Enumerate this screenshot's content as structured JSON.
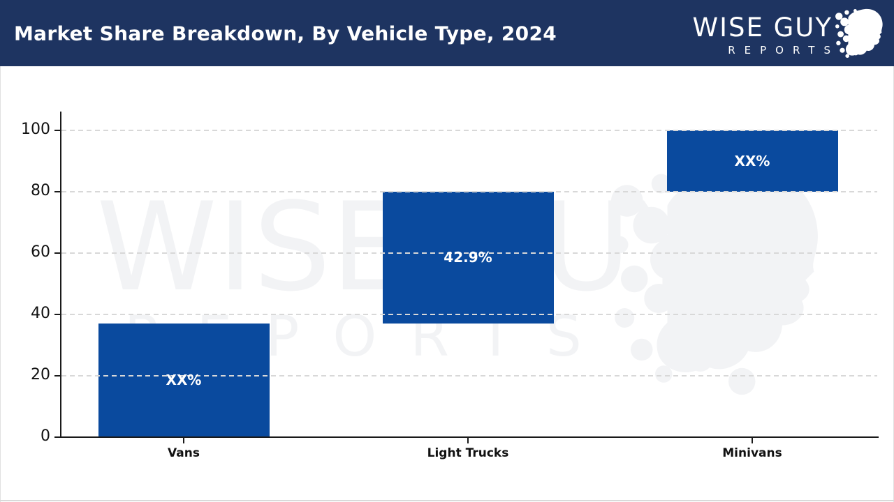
{
  "header": {
    "title": "Market Share Breakdown, By Vehicle Type, 2024",
    "background": "#1e3461",
    "logo": {
      "line1": "WISE GUY",
      "line2": "REPORTS"
    }
  },
  "watermark": {
    "line1": "WISE GUY",
    "line2": "REPORTS"
  },
  "chart_data": {
    "type": "bar",
    "subtype": "stacked-waterfall-segments",
    "title": "Market Share Breakdown, By Vehicle Type, 2024",
    "categories": [
      "Vans",
      "Light Trucks",
      "Minivans"
    ],
    "series": [
      {
        "name": "Vans",
        "start": 0,
        "end": 37.1,
        "label": "XX%"
      },
      {
        "name": "Light Trucks",
        "start": 37.1,
        "end": 80,
        "label": "42.9%"
      },
      {
        "name": "Minivans",
        "start": 80,
        "end": 100,
        "label": "XX%"
      }
    ],
    "xlabel": "",
    "ylabel": "",
    "ylim": [
      0,
      105
    ],
    "yticks": [
      0,
      20,
      40,
      60,
      80,
      100
    ],
    "grid": "horizontal-dashed",
    "legend": "none",
    "bar_color": "#0a4a9e",
    "bar_label_color": "#ffffff",
    "axis_color": "#1a1a1a",
    "grid_color": "#d8d8d8",
    "tick_label_color": "#111111"
  }
}
